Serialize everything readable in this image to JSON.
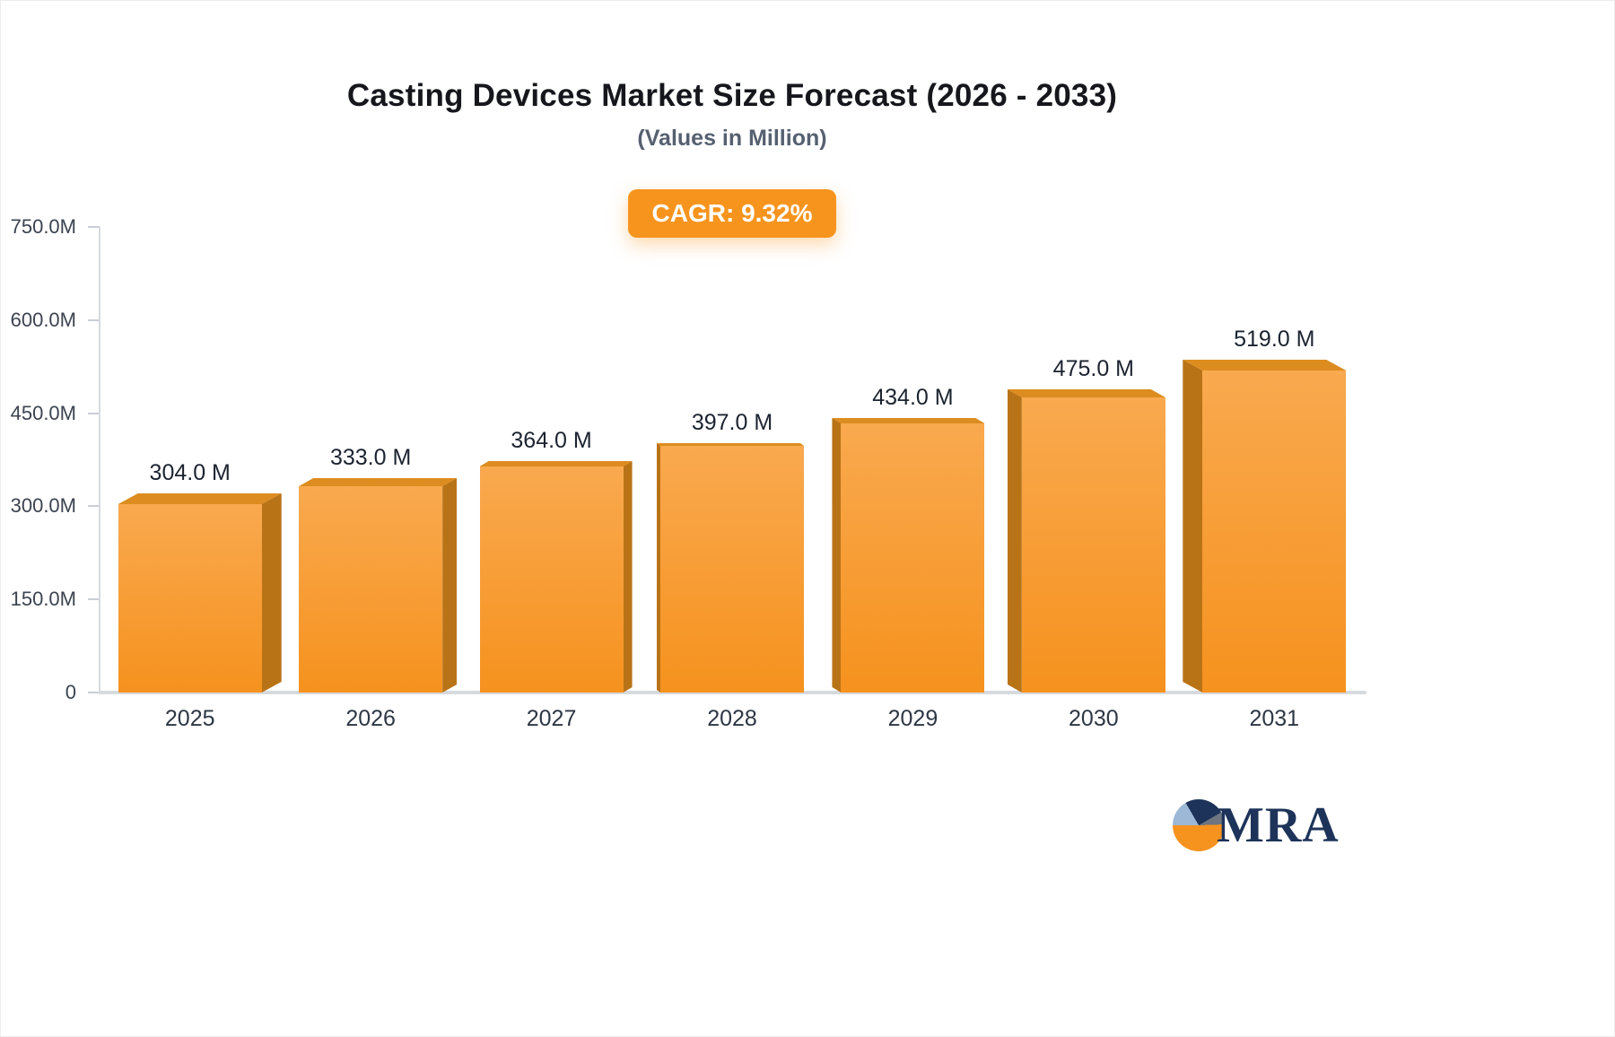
{
  "title": "Casting Devices Market Size Forecast (2026 - 2033)",
  "subtitle": "(Values in Million)",
  "cagr_badge": "CAGR: 9.32%",
  "logo": {
    "text": "MRA"
  },
  "colors": {
    "badge_bg": "#F7941E",
    "badge_text": "#FFFFFF",
    "bar_front_top": "#F9A94F",
    "bar_front_bottom": "#F6921E",
    "bar_side": "#B97317",
    "bar_top": "#DD8C1F",
    "title_text": "#15171C",
    "subtitle_text": "#566070",
    "axis_text": "#3C4350",
    "axis_line": "#D6DADE",
    "logo_navy": "#1D3359",
    "logo_orange": "#F6921E"
  },
  "chart_data": {
    "type": "bar",
    "title": "Casting Devices Market Size Forecast (2026 - 2033)",
    "subtitle": "(Values in Million)",
    "annotation": "CAGR: 9.32%",
    "unit": "Million",
    "categories": [
      "2025",
      "2026",
      "2027",
      "2028",
      "2029",
      "2030",
      "2031"
    ],
    "values": [
      304.0,
      333.0,
      364.0,
      397.0,
      434.0,
      475.0,
      519.0
    ],
    "value_labels": [
      "304.0 M",
      "333.0 M",
      "364.0 M",
      "397.0 M",
      "434.0 M",
      "475.0 M",
      "519.0 M"
    ],
    "ylim": [
      0,
      750
    ],
    "y_ticks": [
      {
        "value": 750,
        "label": "750.0M"
      },
      {
        "value": 600,
        "label": "600.0M"
      },
      {
        "value": 450,
        "label": "450.0M"
      },
      {
        "value": 300,
        "label": "300.0M"
      },
      {
        "value": 150,
        "label": "150.0M"
      },
      {
        "value": 0,
        "label": "0"
      }
    ],
    "grid": false,
    "legend": false
  }
}
